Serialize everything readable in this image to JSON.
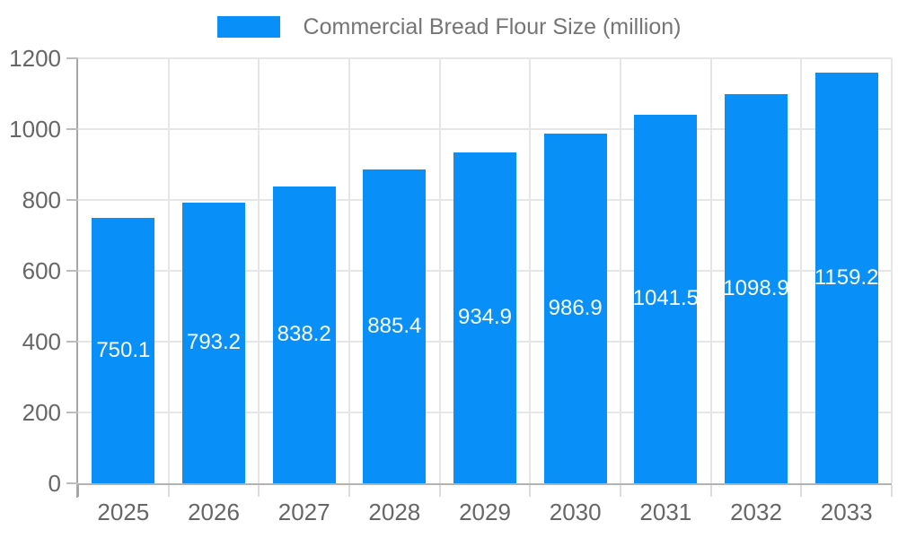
{
  "legend": {
    "label": "Commercial Bread Flour Size (million)"
  },
  "chart_data": {
    "type": "bar",
    "title": "Commercial Bread Flour Size (million)",
    "series_name": "Commercial Bread Flour Size (million)",
    "categories": [
      "2025",
      "2026",
      "2027",
      "2028",
      "2029",
      "2030",
      "2031",
      "2032",
      "2033"
    ],
    "values": [
      750.1,
      793.2,
      838.2,
      885.4,
      934.9,
      986.9,
      1041.5,
      1098.9,
      1159.2
    ],
    "value_labels": [
      "750.1",
      "793.2",
      "838.2",
      "885.4",
      "934.9",
      "986.9",
      "1041.5",
      "1098.9",
      "1159.2"
    ],
    "xlabel": "",
    "ylabel": "",
    "ylim": [
      0,
      1200
    ],
    "yticks": [
      0,
      200,
      400,
      600,
      800,
      1000,
      1200
    ],
    "grid": true,
    "legend_position": "top-center",
    "value_labels_position": "inside-center"
  },
  "colors": {
    "bar": "#0990f8",
    "grid": "#e6e6e6",
    "axis_y": "#a6a6a6",
    "axis_x": "#b3b3b3",
    "tick_mark_y": "#bdbdbd",
    "tick_mark_x": "#dcdcdc",
    "tick_label": "#666666",
    "legend_text": "#757575",
    "value_label": "#ffffff",
    "background": "#ffffff"
  }
}
